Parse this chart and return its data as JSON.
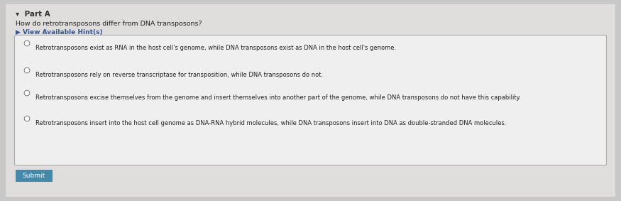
{
  "bg_color": "#c8c8c8",
  "content_bg": "#e0dedd",
  "box_bg": "#efefef",
  "box_border": "#aaaaaa",
  "part_label": "Part A",
  "arrow_down": "▾",
  "question": "How do retrotransposons differ from DNA transposons?",
  "hint_arrow": "▶",
  "hint_text": "View Available Hint(s)",
  "options": [
    "Retrotransposons exist as RNA in the host cell's genome, while DNA transposons exist as DNA in the host cell's genome.",
    "Retrotransposons rely on reverse transcriptase for transposition, while DNA transposons do not.",
    "Retrotransposons excise themselves from the genome and insert themselves into another part of the genome, while DNA transposons do not have this capability.",
    "Retrotransposons insert into the host cell genome as DNA-RNA hybrid molecules, while DNA transposons insert into DNA as double-stranded DNA molecules."
  ],
  "submit_text": "Submit",
  "submit_bg": "#4488aa",
  "submit_text_color": "#ffffff",
  "font_size_part": 7.5,
  "font_size_question": 6.8,
  "font_size_hint": 6.5,
  "font_size_options": 6.0,
  "font_size_submit": 6.5,
  "text_color_main": "#222222",
  "text_color_hint": "#335599",
  "text_color_part": "#333333"
}
